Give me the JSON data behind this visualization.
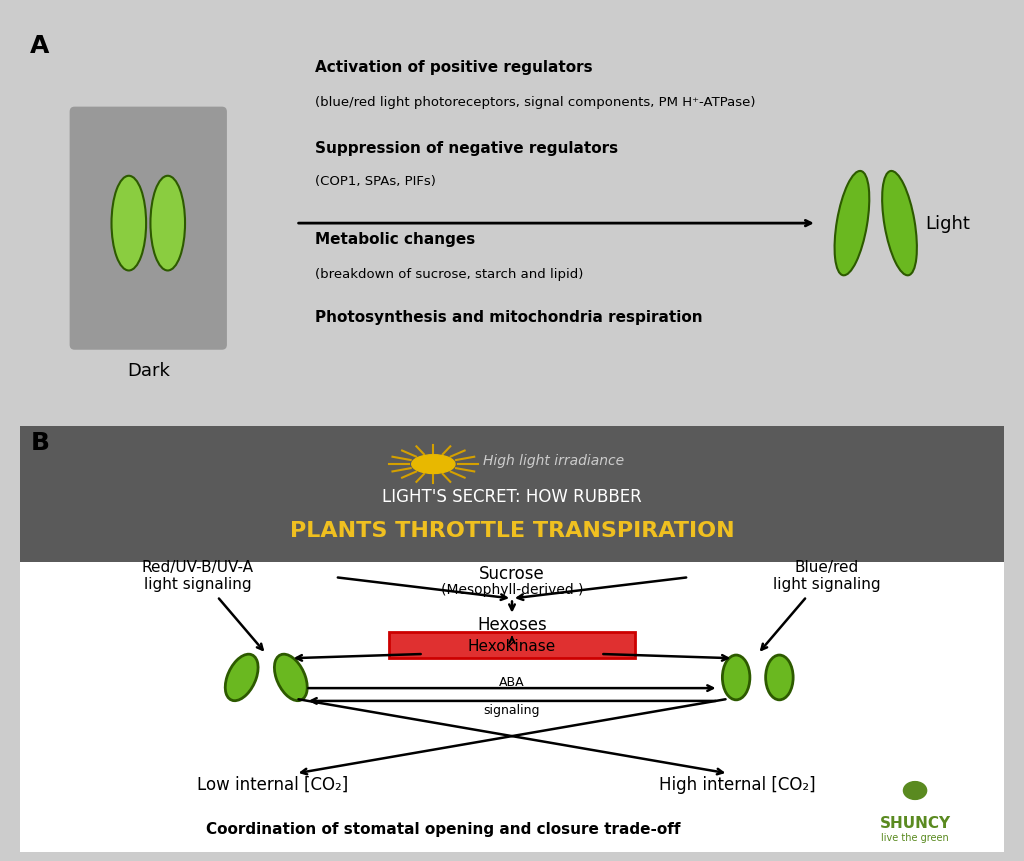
{
  "bg_top": "#ffffff",
  "bg_bottom": "#ffffff",
  "panel_b_bg": "#6d6d6d",
  "overlay_bg": "#5a5a5a",
  "title_line1": "LIGHT'S SECRET: HOW RUBBER",
  "title_line2": "PLANTS THROTTLE TRANSPIRATION",
  "title_color1": "#ffffff",
  "title_color2": "#f0c020",
  "label_A": "A",
  "label_B": "B",
  "dark_label": "Dark",
  "light_label": "Light",
  "text1_bold": "Activation of positive regulators",
  "text1_sub": "(blue/red light photoreceptors, signal components, PM H⁺-ATPase)",
  "text2_bold": "Suppression of negative regulators",
  "text2_sub": "(COP1, SPAs, PIFs)",
  "text3_bold": "Metabolic changes",
  "text3_sub": "(breakdown of sucrose, starch and lipid)",
  "text4": "Photosynthesis and mitochondria respiration",
  "stoma_dark_fill": "#8acd40",
  "stoma_dark_bg": "#999999",
  "stoma_light_fill": "#6ab820",
  "stoma_outline": "#2d5a00",
  "high_light_text": "High light irradiance",
  "sucrose_text": "Sucrose",
  "sucrose_sub": "(Mesophyll-derived )",
  "hexoses_text": "Hexoses",
  "hexokinase_text": "Hexokinase",
  "hexokinase_bg": "#e03030",
  "aba_text": "ABA\nsignaling",
  "red_uv_text": "Red/UV-B/UV-A\nlight signaling",
  "blue_red_text": "Blue/red\nlight signaling",
  "low_co2": "Low internal [CO₂]",
  "high_co2": "High internal [CO₂]",
  "coord_text": "Coordination of stomatal opening and closure trade-off",
  "shuncy_text": "SHUNCY",
  "shuncy_sub": "live the green"
}
